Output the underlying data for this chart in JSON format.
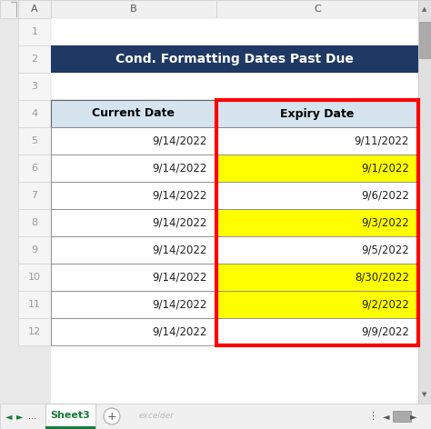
{
  "title": "Cond. Formatting Dates Past Due",
  "title_bg": "#1F3864",
  "title_fg": "#FFFFFF",
  "header_bg": "#D6E4F0",
  "header_fg": "#000000",
  "col_headers": [
    "Current Date",
    "Expiry Date"
  ],
  "rows": [
    {
      "current": "9/14/2022",
      "expiry": "9/11/2022",
      "highlight": false
    },
    {
      "current": "9/14/2022",
      "expiry": "9/1/2022",
      "highlight": true
    },
    {
      "current": "9/14/2022",
      "expiry": "9/6/2022",
      "highlight": false
    },
    {
      "current": "9/14/2022",
      "expiry": "9/3/2022",
      "highlight": true
    },
    {
      "current": "9/14/2022",
      "expiry": "9/5/2022",
      "highlight": false
    },
    {
      "current": "9/14/2022",
      "expiry": "8/30/2022",
      "highlight": true
    },
    {
      "current": "9/14/2022",
      "expiry": "9/2/2022",
      "highlight": true
    },
    {
      "current": "9/14/2022",
      "expiry": "9/9/2022",
      "highlight": false
    }
  ],
  "highlight_color": "#FFFF00",
  "border_color": "#888888",
  "red_border_color": "#FF0000",
  "sheet_tab": "Sheet3",
  "col_header_bg": "#F0F0F0",
  "col_header_fg": "#555555",
  "row_header_bg": "#F5F5F5",
  "row_header_fg": "#999999",
  "spreadsheet_bg": "#FFFFFF",
  "outer_bg": "#E8E8E8",
  "tab_bar_bg": "#F0F0F0",
  "tab_fg": "#1a7a3a",
  "scrollbar_bg": "#E0E0E0",
  "scrollbar_thumb": "#AAAAAA",
  "fig_w": 4.74,
  "fig_h": 4.72,
  "dpi": 100
}
